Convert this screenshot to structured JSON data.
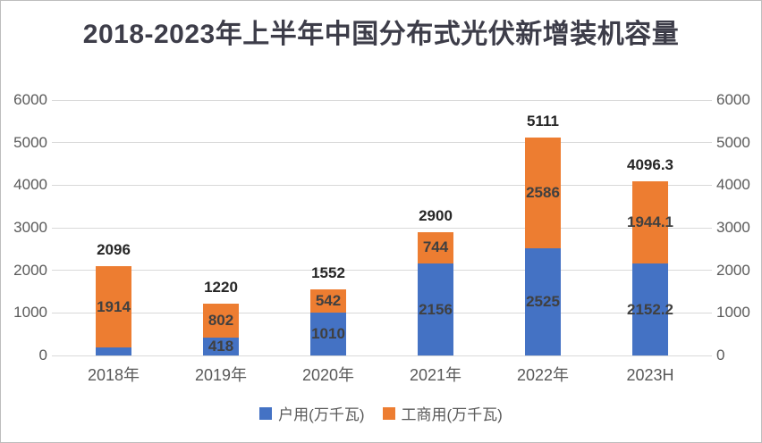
{
  "title": "2018-2023年上半年中国分布式光伏新增装机容量",
  "chart_data": {
    "type": "bar",
    "stacked": true,
    "title": "2018-2023年上半年中国分布式光伏新增装机容量",
    "categories": [
      "2018年",
      "2019年",
      "2020年",
      "2021年",
      "2022年",
      "2023H"
    ],
    "series": [
      {
        "name": "户用(万千瓦)",
        "color": "#4472C4",
        "values": [
          182,
          418,
          1010,
          2156,
          2525,
          2152.2
        ]
      },
      {
        "name": "工商用(万千瓦)",
        "color": "#ED7D31",
        "values": [
          1914,
          802,
          542,
          744,
          2586,
          1944.1
        ]
      }
    ],
    "totals": [
      2096,
      1220,
      1552,
      2900,
      5111,
      4096.3
    ],
    "ylim": [
      0,
      6000
    ],
    "y_ticks": [
      0,
      1000,
      2000,
      3000,
      4000,
      5000,
      6000
    ],
    "secondary_y_axis": true,
    "grid": true,
    "legend_position": "bottom",
    "colors": {
      "grid": "#d9d9d9",
      "axis_text": "#595959",
      "segment_label": "#404040",
      "total_label": "#262626",
      "title_text": "#3d3d49"
    }
  }
}
